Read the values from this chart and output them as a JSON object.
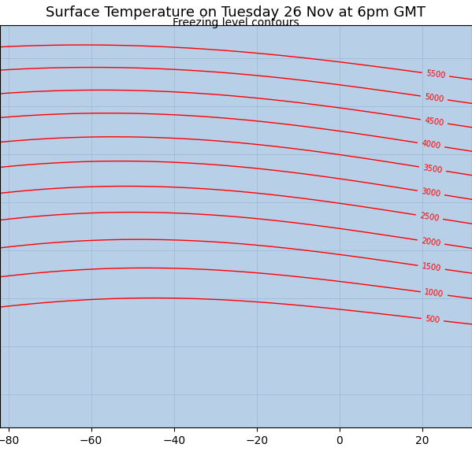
{
  "title": "Surface Temperature on Tuesday 26 Nov at 6pm GMT",
  "subtitle": "Freezing level contours",
  "title_fontsize": 13,
  "subtitle_fontsize": 10,
  "ocean_color": "#b8cfe8",
  "fig_bg": "#ffffff",
  "contour_color": "#ff0000",
  "contour_linewidth": 1.0,
  "contour_label_fontsize": 7,
  "grid_color": "#8aadcc",
  "grid_alpha": 0.8,
  "grid_linewidth": 0.4,
  "extent": [
    -82,
    32,
    -67,
    17
  ],
  "contour_levels": [
    500,
    1000,
    1500,
    2000,
    2500,
    3000,
    3500,
    4000,
    4500,
    5000,
    5500
  ],
  "land_temp_colors": [
    "#004400",
    "#006600",
    "#008800",
    "#33aa00",
    "#88cc00",
    "#ccdd00",
    "#ffee00",
    "#ffcc00",
    "#ffaa00",
    "#ff8800",
    "#ff6600",
    "#ff4400",
    "#ee2200",
    "#cc1100",
    "#aa0000",
    "#880000",
    "#660000",
    "#550000"
  ]
}
